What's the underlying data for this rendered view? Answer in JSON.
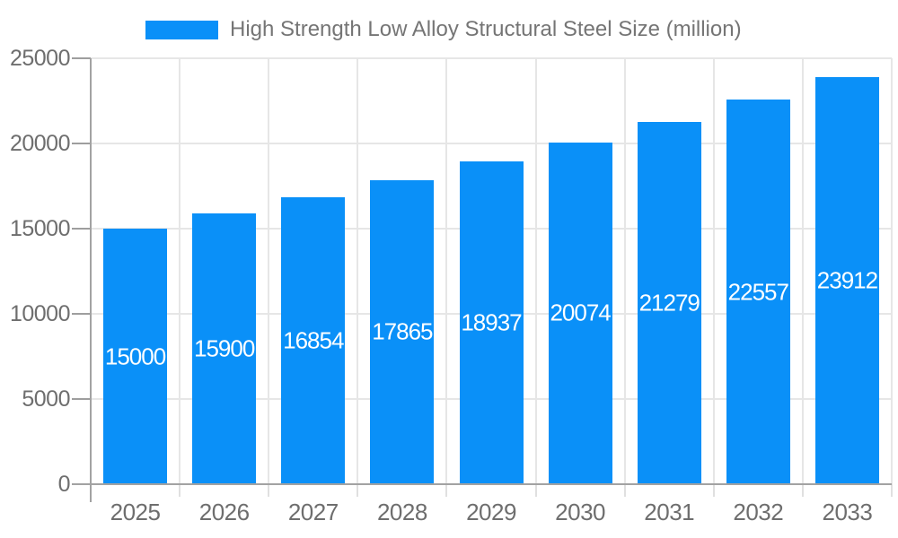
{
  "chart_data": {
    "type": "bar",
    "title": "High Strength Low Alloy Structural Steel Size (million)",
    "categories": [
      "2025",
      "2026",
      "2027",
      "2028",
      "2029",
      "2030",
      "2031",
      "2032",
      "2033"
    ],
    "values": [
      15000,
      15900,
      16854,
      17865,
      18937,
      20074,
      21279,
      22557,
      23912
    ],
    "series": [
      {
        "name": "High Strength Low Alloy Structural Steel Size (million)",
        "values": [
          15000,
          15900,
          16854,
          17865,
          18937,
          20074,
          21279,
          22557,
          23912
        ]
      }
    ],
    "xlabel": "",
    "ylabel": "",
    "ylim": [
      0,
      25000
    ],
    "yticks": [
      0,
      5000,
      10000,
      15000,
      20000,
      25000
    ],
    "grid": true,
    "legend_position": "top",
    "value_labels": "inside-bar-centered",
    "colors": {
      "bar": "#0A90F8",
      "bar_value_text": "#FFFFFF",
      "legend_text": "#757575",
      "axis_tick_text": "#6E6E6E",
      "axis_line": "#A2A2A2",
      "y_tick_mark": "#9E9E9E",
      "gridline": "#E6E6E6",
      "x_tick_mark": "#E0E0E0",
      "background": "#FFFFFF"
    }
  }
}
